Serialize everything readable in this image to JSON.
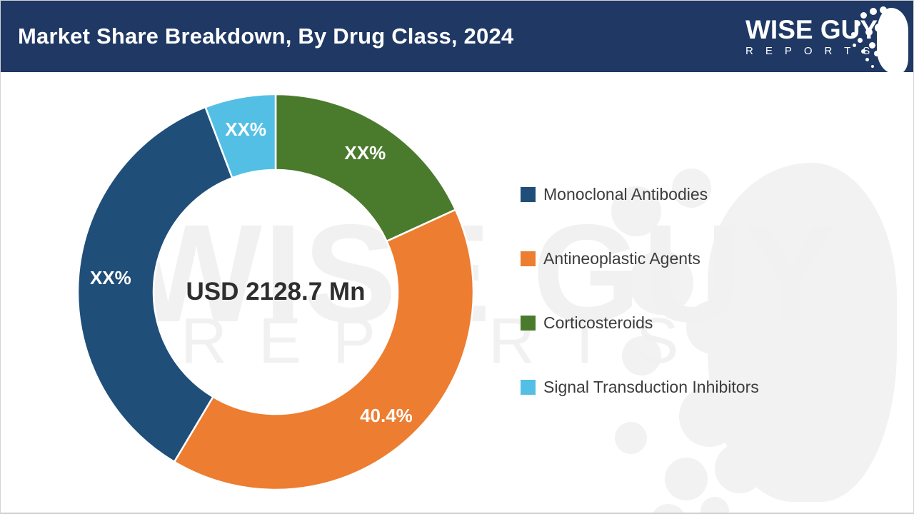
{
  "header": {
    "title": "Market Share Breakdown, By Drug Class, 2024",
    "bg_color": "#1f3864",
    "logo": {
      "line1": "WISE GUY",
      "line2": "REPORTS"
    }
  },
  "watermark": {
    "line1": "WISE GUY",
    "line2": "REPORTS"
  },
  "chart_data": {
    "type": "pie",
    "subtype": "donut",
    "title": "Market Share Breakdown, By Drug Class, 2024",
    "center_text": "USD 2128.7 Mn",
    "direction": "clockwise",
    "start_angle": "12-oclock",
    "legend_position": "right",
    "segments": [
      {
        "id": "monoclonal-antibodies",
        "label": "Monoclonal Antibodies",
        "display_value": "XX%",
        "value_pct_est": 35.6,
        "start_deg": 210.8,
        "end_deg": 339.2,
        "color": "#1f4e79"
      },
      {
        "id": "antineoplastic-agents",
        "label": "Antineoplastic Agents",
        "display_value": "40.4%",
        "value_pct_est": 40.4,
        "start_deg": 65.4,
        "end_deg": 210.8,
        "color": "#ed7d31"
      },
      {
        "id": "corticosteroids",
        "label": "Corticosteroids",
        "display_value": "XX%",
        "value_pct_est": 18.2,
        "start_deg": 0,
        "end_deg": 65.4,
        "color": "#4a7b2d"
      },
      {
        "id": "signal-transduction-inhibitors",
        "label": "Signal Transduction Inhibitors",
        "display_value": "XX%",
        "value_pct_est": 5.8,
        "start_deg": 339.2,
        "end_deg": 360,
        "color": "#54bfe4"
      }
    ]
  }
}
